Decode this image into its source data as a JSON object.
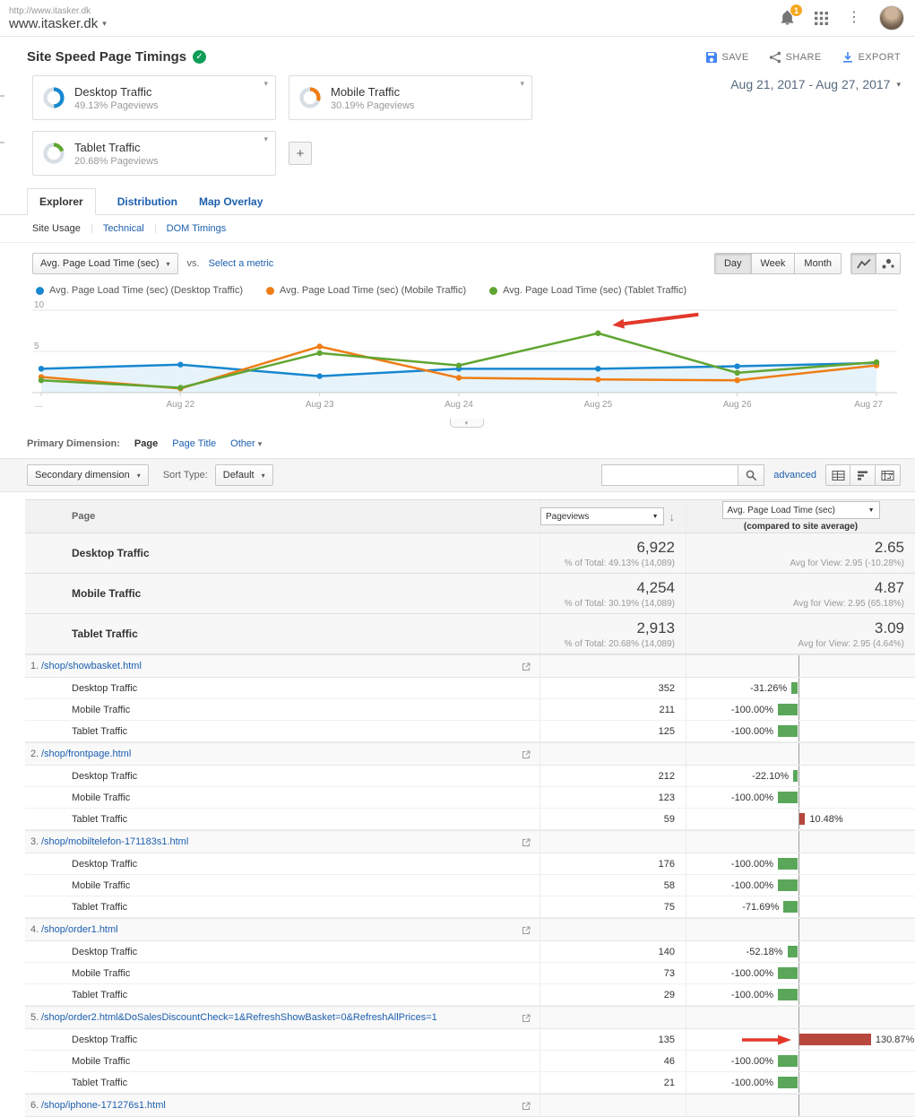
{
  "header": {
    "url": "http://www.itasker.dk",
    "account": "www.itasker.dk",
    "bell_badge": "1"
  },
  "page": {
    "title": "Site Speed Page Timings",
    "save_label": "SAVE",
    "share_label": "SHARE",
    "export_label": "EXPORT",
    "date_range": "Aug 21, 2017 - Aug 27, 2017"
  },
  "segments": [
    {
      "name": "Desktop Traffic",
      "sub": "49.13% Pageviews",
      "pct": 49.13,
      "color": "#1787d0"
    },
    {
      "name": "Mobile Traffic",
      "sub": "30.19% Pageviews",
      "pct": 30.19,
      "color": "#ef7d15"
    },
    {
      "name": "Tablet Traffic",
      "sub": "20.68% Pageviews",
      "pct": 20.68,
      "color": "#61a532"
    }
  ],
  "add_segment_label": "+",
  "tabs": {
    "explorer": "Explorer",
    "distribution": "Distribution",
    "map_overlay": "Map Overlay"
  },
  "subnav": {
    "site_usage": "Site Usage",
    "technical": "Technical",
    "dom_timings": "DOM Timings"
  },
  "metric_bar": {
    "metric": "Avg. Page Load Time (sec)",
    "vs": "vs.",
    "select_metric": "Select a metric",
    "day": "Day",
    "week": "Week",
    "month": "Month"
  },
  "chart_data": {
    "type": "line",
    "x": [
      "...",
      "Aug 22",
      "Aug 23",
      "Aug 24",
      "Aug 25",
      "Aug 26",
      "Aug 27"
    ],
    "series": [
      {
        "name": "Avg. Page Load Time (sec) (Desktop Traffic)",
        "color": "#1787d0",
        "values": [
          2.9,
          3.4,
          2.0,
          2.9,
          2.9,
          3.2,
          3.6
        ]
      },
      {
        "name": "Avg. Page Load Time (sec) (Mobile Traffic)",
        "color": "#ef7d15",
        "values": [
          1.9,
          0.5,
          5.6,
          1.8,
          1.6,
          1.5,
          3.3
        ]
      },
      {
        "name": "Avg. Page Load Time (sec) (Tablet Traffic)",
        "color": "#61a532",
        "values": [
          1.5,
          0.6,
          4.8,
          3.3,
          7.2,
          2.4,
          3.7
        ]
      }
    ],
    "ylim": [
      0,
      10
    ],
    "yticks": [
      5,
      10
    ],
    "grid": "horizontal",
    "legend_position": "top",
    "annotations": [
      {
        "type": "red-arrow",
        "series": 2,
        "point": 4,
        "color": "#e2382a"
      }
    ]
  },
  "primary_dimension": {
    "label": "Primary Dimension:",
    "selected": "Page",
    "link1": "Page Title",
    "link2": "Other"
  },
  "controls": {
    "secondary_dimension": "Secondary dimension",
    "sort_type_label": "Sort Type:",
    "sort_type_value": "Default",
    "search_value": "",
    "advanced": "advanced"
  },
  "table": {
    "columns": {
      "page": "Page",
      "pageviews": "Pageviews",
      "metric": "Avg. Page Load Time (sec)",
      "metric_sub": "(compared to site average)"
    },
    "bar_colors": {
      "positive": "#b8473d",
      "negative": "#5aa75a"
    },
    "summary_rows": [
      {
        "name": "Desktop Traffic",
        "pageviews": "6,922",
        "pageviews_sub": "% of Total: 49.13% (14,089)",
        "metric": "2.65",
        "metric_sub": "Avg for View: 2.95 (-10.28%)"
      },
      {
        "name": "Mobile Traffic",
        "pageviews": "4,254",
        "pageviews_sub": "% of Total: 30.19% (14,089)",
        "metric": "4.87",
        "metric_sub": "Avg for View: 2.95 (65.18%)"
      },
      {
        "name": "Tablet Traffic",
        "pageviews": "2,913",
        "pageviews_sub": "% of Total: 20.68% (14,089)",
        "metric": "3.09",
        "metric_sub": "Avg for View: 2.95 (4.64%)"
      }
    ],
    "groups": [
      {
        "index": "1.",
        "url": "/shop/showbasket.html",
        "rows": [
          {
            "segment": "Desktop Traffic",
            "pageviews": "352",
            "delta_pct": -31.26,
            "delta_label": "-31.26%"
          },
          {
            "segment": "Mobile Traffic",
            "pageviews": "211",
            "delta_pct": -100.0,
            "delta_label": "-100.00%"
          },
          {
            "segment": "Tablet Traffic",
            "pageviews": "125",
            "delta_pct": -100.0,
            "delta_label": "-100.00%"
          }
        ]
      },
      {
        "index": "2.",
        "url": "/shop/frontpage.html",
        "rows": [
          {
            "segment": "Desktop Traffic",
            "pageviews": "212",
            "delta_pct": -22.1,
            "delta_label": "-22.10%"
          },
          {
            "segment": "Mobile Traffic",
            "pageviews": "123",
            "delta_pct": -100.0,
            "delta_label": "-100.00%"
          },
          {
            "segment": "Tablet Traffic",
            "pageviews": "59",
            "delta_pct": 10.48,
            "delta_label": "10.48%"
          }
        ]
      },
      {
        "index": "3.",
        "url": "/shop/mobiltelefon-171183s1.html",
        "rows": [
          {
            "segment": "Desktop Traffic",
            "pageviews": "176",
            "delta_pct": -100.0,
            "delta_label": "-100.00%"
          },
          {
            "segment": "Mobile Traffic",
            "pageviews": "58",
            "delta_pct": -100.0,
            "delta_label": "-100.00%"
          },
          {
            "segment": "Tablet Traffic",
            "pageviews": "75",
            "delta_pct": -71.69,
            "delta_label": "-71.69%"
          }
        ]
      },
      {
        "index": "4.",
        "url": "/shop/order1.html",
        "rows": [
          {
            "segment": "Desktop Traffic",
            "pageviews": "140",
            "delta_pct": -52.18,
            "delta_label": "-52.18%"
          },
          {
            "segment": "Mobile Traffic",
            "pageviews": "73",
            "delta_pct": -100.0,
            "delta_label": "-100.00%"
          },
          {
            "segment": "Tablet Traffic",
            "pageviews": "29",
            "delta_pct": -100.0,
            "delta_label": "-100.00%"
          }
        ]
      },
      {
        "index": "5.",
        "url": "/shop/order2.html&DoSalesDiscountCheck=1&RefreshShowBasket=0&RefreshAllPrices=1",
        "rows": [
          {
            "segment": "Desktop Traffic",
            "pageviews": "135",
            "delta_pct": 130.87,
            "delta_label": "130.87%",
            "annotation": "red-arrow"
          },
          {
            "segment": "Mobile Traffic",
            "pageviews": "46",
            "delta_pct": -100.0,
            "delta_label": "-100.00%"
          },
          {
            "segment": "Tablet Traffic",
            "pageviews": "21",
            "delta_pct": -100.0,
            "delta_label": "-100.00%"
          }
        ]
      }
    ],
    "partial_row": {
      "index": "6.",
      "url": "/shop/iphone-171276s1.html"
    }
  }
}
